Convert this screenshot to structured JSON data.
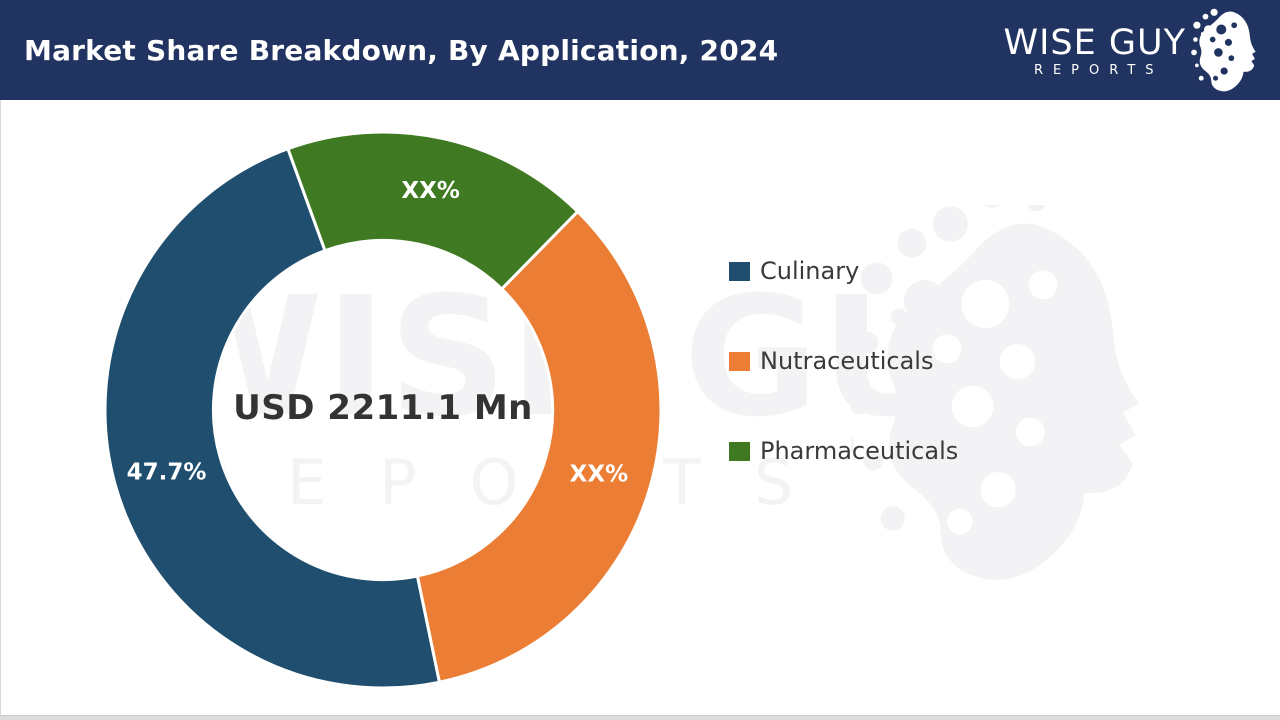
{
  "header": {
    "title": "Market Share Breakdown, By Application, 2024",
    "logo": {
      "line1": "WISE GUY",
      "line2": "REPORTS"
    }
  },
  "watermark": {
    "line1": "WISE GUY",
    "line2": "REPORTS"
  },
  "chart_data": {
    "type": "pie",
    "subtype": "donut",
    "title": "Market Share Breakdown, By Application, 2024",
    "center_label": "USD 2211.1 Mn",
    "legend_position": "right",
    "start_angle_deg": -20,
    "direction": "counterclockwise",
    "inner_radius_ratio": 0.61,
    "segments": [
      {
        "label": "Culinary",
        "value": 47.7,
        "display_value": "47.7%",
        "color": "#1F4E6E"
      },
      {
        "label": "Nutraceuticals",
        "value": 34.4,
        "display_value": "XX%",
        "color": "#EB7D34"
      },
      {
        "label": "Pharmaceuticals",
        "value": 17.9,
        "display_value": "XX%",
        "color": "#3F7A22"
      }
    ]
  },
  "colors": {
    "header_bg": "#213360",
    "watermark": "#f3f3f5",
    "center_text": "#333333",
    "legend_text": "#3a3a3a",
    "separator": "#ffffff"
  }
}
